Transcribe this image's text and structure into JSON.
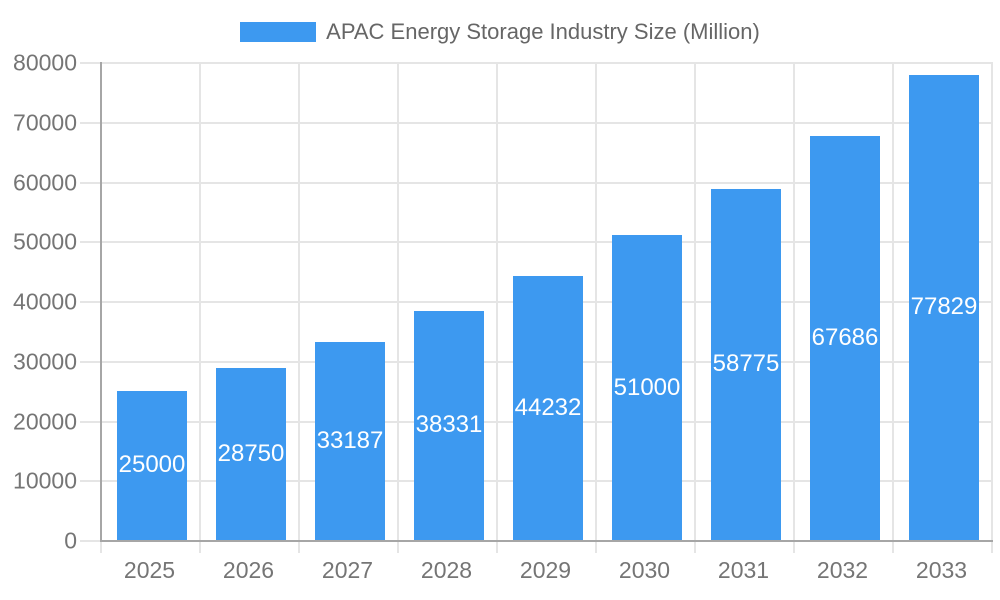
{
  "chart_data": {
    "type": "bar",
    "title": "APAC Energy Storage Industry Size (Million)",
    "legend_label": "APAC Energy Storage Industry Size (Million)",
    "legend_position": "top-center",
    "categories": [
      "2025",
      "2026",
      "2027",
      "2028",
      "2029",
      "2030",
      "2031",
      "2032",
      "2033"
    ],
    "values": [
      25000,
      28750,
      33187,
      38331,
      44232,
      51000,
      58775,
      67686,
      77829
    ],
    "xlabel": "",
    "ylabel": "",
    "ylim": [
      0,
      80000
    ],
    "ytick_step": 10000,
    "yticks": [
      0,
      10000,
      20000,
      30000,
      40000,
      50000,
      60000,
      70000,
      80000
    ],
    "grid": true,
    "value_label_style": "inside-center-white",
    "colors": {
      "bar": "#3D99F0",
      "value_label": "#FFFFFF",
      "axis_label": "#757575",
      "legend_text": "#666666",
      "gridline": "#E5E5E5",
      "axis_line": "#A6A6A6",
      "background": "#FFFFFF"
    }
  }
}
